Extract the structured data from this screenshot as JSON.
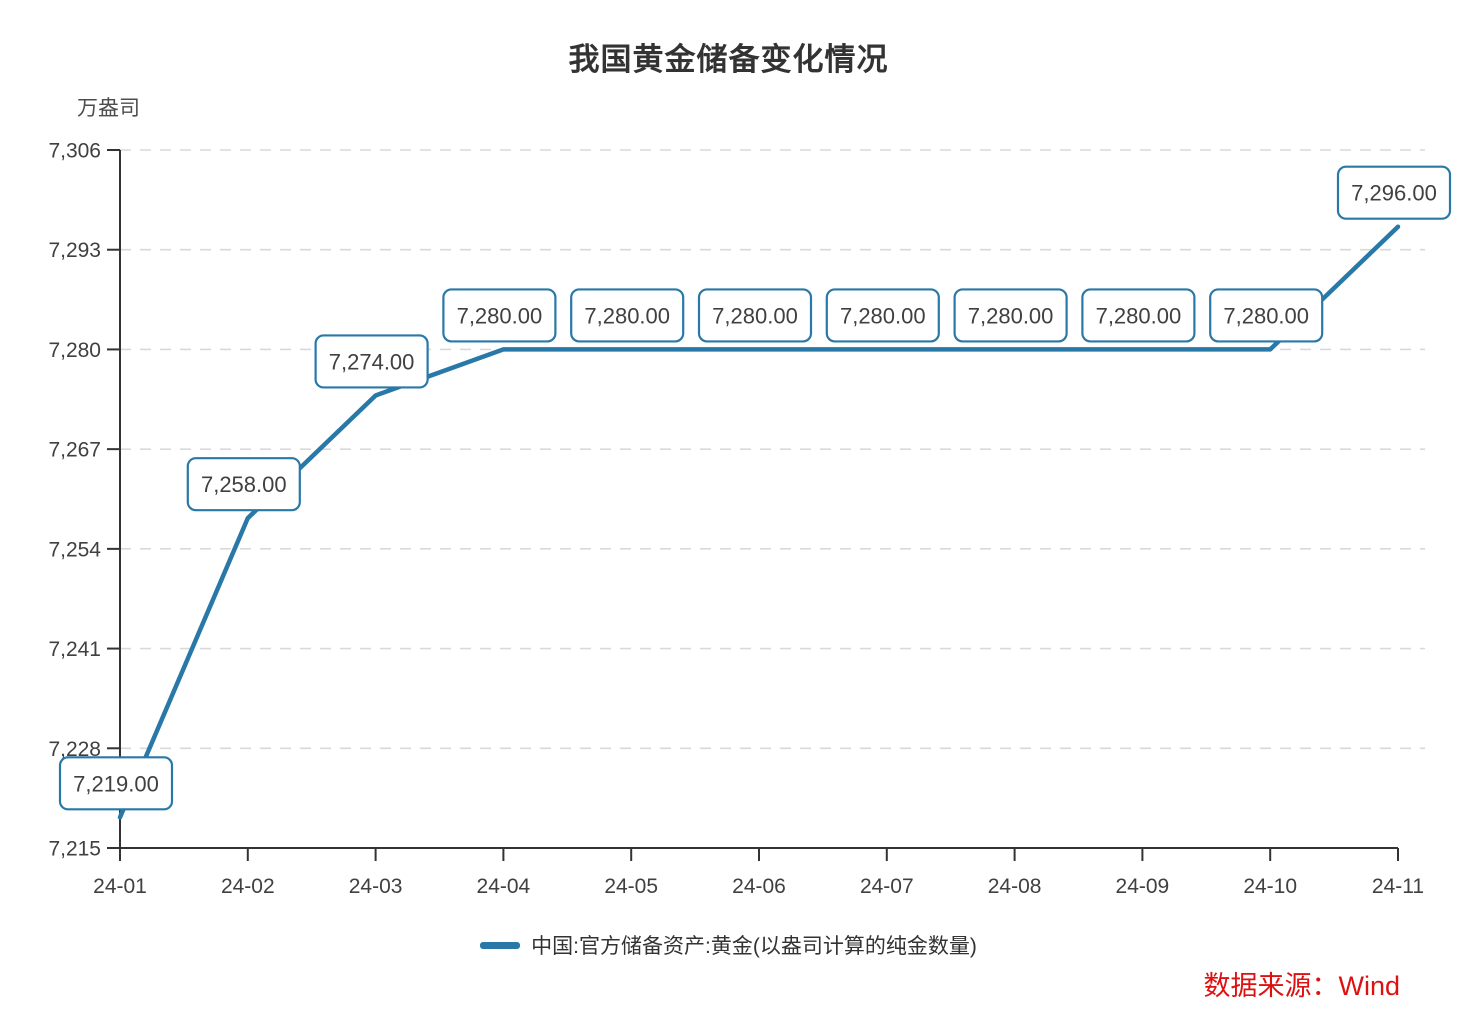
{
  "chart_data": {
    "type": "line",
    "title": "我国黄金储备变化情况",
    "ylabel": "万盎司",
    "xlabel": "",
    "x": [
      "24-01",
      "24-02",
      "24-03",
      "24-04",
      "24-05",
      "24-06",
      "24-07",
      "24-08",
      "24-09",
      "24-10",
      "24-11"
    ],
    "series": [
      {
        "name": "中国:官方储备资产:黄金(以盎司计算的纯金数量)",
        "values": [
          7219,
          7258,
          7274,
          7280,
          7280,
          7280,
          7280,
          7280,
          7280,
          7280,
          7296
        ],
        "labels": [
          "7,219.00",
          "7,258.00",
          "7,274.00",
          "7,280.00",
          "7,280.00",
          "7,280.00",
          "7,280.00",
          "7,280.00",
          "7,280.00",
          "7,280.00",
          "7,296.00"
        ],
        "color": "#2878a8"
      }
    ],
    "ylim": [
      7215,
      7306
    ],
    "y_ticks": [
      7215,
      7228,
      7241,
      7254,
      7267,
      7280,
      7293,
      7306
    ],
    "y_tick_labels": [
      "7,215",
      "7,228",
      "7,241",
      "7,254",
      "7,267",
      "7,280",
      "7,293",
      "7,306"
    ],
    "grid": "horizontal-dashed",
    "legend_position": "bottom"
  },
  "legend": {
    "label": "中国:官方储备资产:黄金(以盎司计算的纯金数量)"
  },
  "source": {
    "text": "数据来源：Wind",
    "color": "#dd1111"
  },
  "colors": {
    "line": "#2878a8",
    "grid": "#d9d9d9",
    "axis": "#333333",
    "tick_text": "#404040",
    "label_text": "#404040",
    "title_text": "#333333"
  }
}
